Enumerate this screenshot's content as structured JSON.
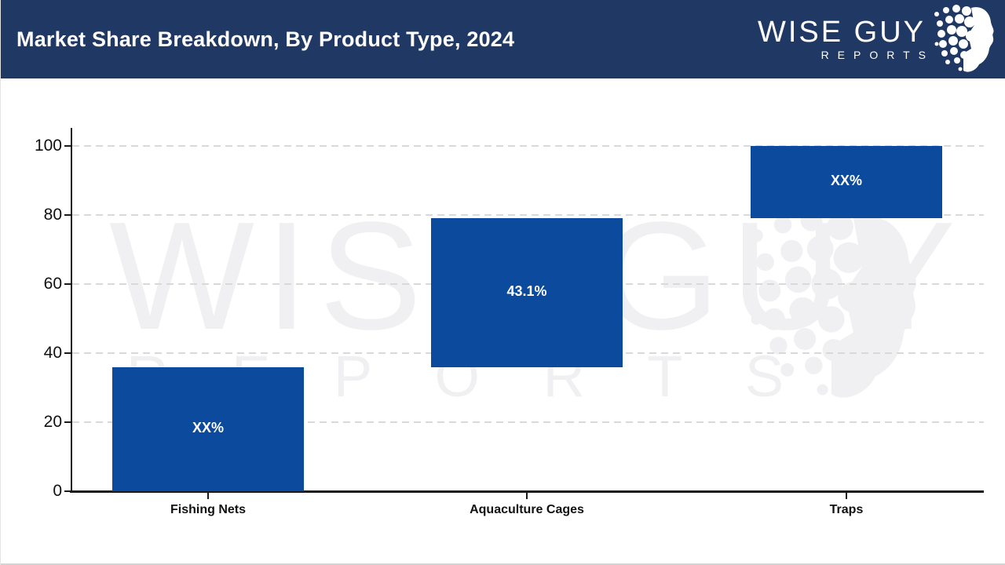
{
  "header": {
    "title": "Market Share Breakdown, By Product Type, 2024",
    "bg_color": "#1f3864",
    "logo": {
      "line1": "WISE GUY",
      "line2": "REPORTS"
    }
  },
  "watermark": {
    "line1": "WISE GUY",
    "line2": "R E P O R T S"
  },
  "chart_data": {
    "type": "bar",
    "subtype": "waterfall",
    "title": "Market Share Breakdown, By Product Type, 2024",
    "categories": [
      "Fishing Nets",
      "Aquaculture Cages",
      "Traps"
    ],
    "segments": [
      {
        "category": "Fishing Nets",
        "start": 0,
        "end": 35.9,
        "label": "XX%"
      },
      {
        "category": "Aquaculture Cages",
        "start": 35.9,
        "end": 79.0,
        "label": "43.1%"
      },
      {
        "category": "Traps",
        "start": 79.0,
        "end": 100,
        "label": "XX%"
      }
    ],
    "yticks": [
      0,
      20,
      40,
      60,
      80,
      100
    ],
    "ylim": [
      0,
      105
    ],
    "xlabel": "",
    "ylabel": "",
    "grid": "horizontal-dashed",
    "legend": "none",
    "bar_color": "#0b4a9d",
    "bar_label_color": "#ffffff",
    "axis_color": "#1a1a1a",
    "grid_color": "#d9d9d9"
  }
}
